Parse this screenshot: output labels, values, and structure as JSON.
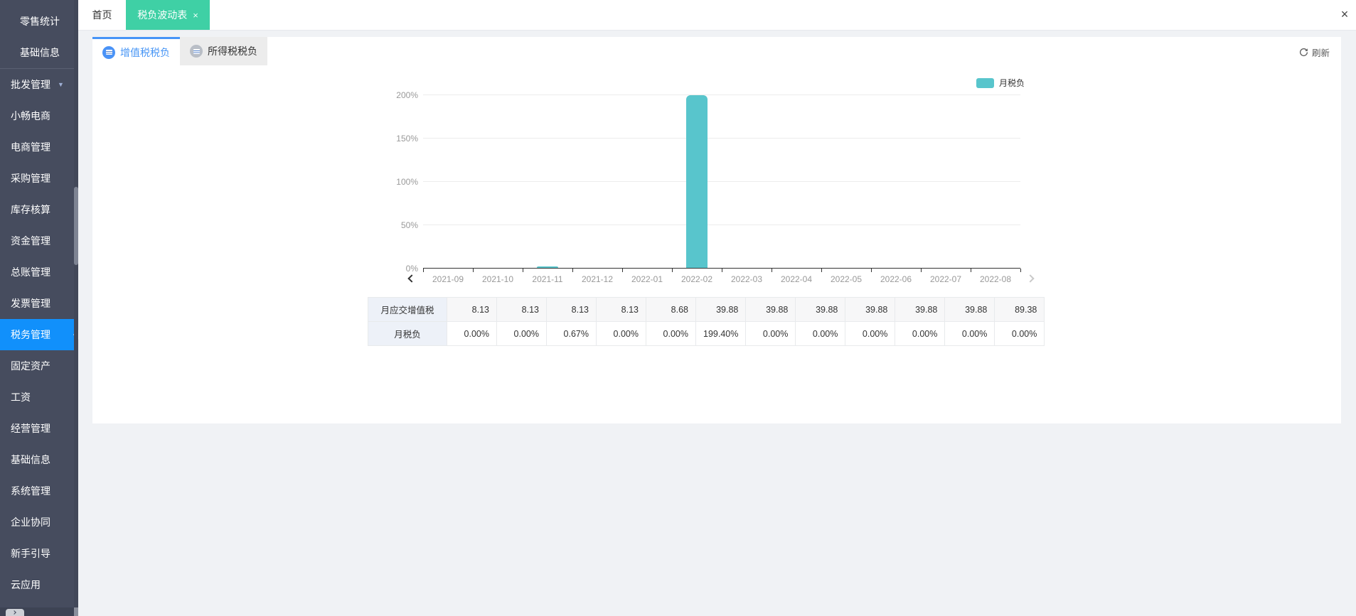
{
  "sidebar": {
    "items": [
      {
        "label": "零售统计",
        "indent": true
      },
      {
        "label": "基础信息",
        "indent": true
      },
      {
        "label": "批发管理",
        "dropdown": true
      },
      {
        "label": "小畅电商"
      },
      {
        "label": "电商管理"
      },
      {
        "label": "采购管理"
      },
      {
        "label": "库存核算"
      },
      {
        "label": "资金管理"
      },
      {
        "label": "总账管理"
      },
      {
        "label": "发票管理"
      },
      {
        "label": "税务管理",
        "active": true
      },
      {
        "label": "固定资产"
      },
      {
        "label": "工资"
      },
      {
        "label": "经营管理"
      },
      {
        "label": "基础信息"
      },
      {
        "label": "系统管理"
      },
      {
        "label": "企业协同"
      },
      {
        "label": "新手引导"
      },
      {
        "label": "云应用"
      }
    ]
  },
  "tabbar": {
    "home_label": "首页",
    "active_label": "税负波动表",
    "tab_close": "×",
    "window_close": "×"
  },
  "content": {
    "tabs": [
      {
        "label": "增值税税负",
        "active": true
      },
      {
        "label": "所得税税负",
        "active": false
      }
    ],
    "refresh_label": "刷新"
  },
  "chart_data": {
    "type": "bar",
    "title": "",
    "legend_label": "月税负",
    "legend_position": "top-right",
    "grid": true,
    "categories": [
      "2021-09",
      "2021-10",
      "2021-11",
      "2021-12",
      "2022-01",
      "2022-02",
      "2022-03",
      "2022-04",
      "2022-05",
      "2022-06",
      "2022-07",
      "2022-08"
    ],
    "series": [
      {
        "name": "月税负",
        "values": [
          0,
          0,
          0.67,
          0,
          0,
          199.4,
          0,
          0,
          0,
          0,
          0,
          0
        ]
      }
    ],
    "ylim": [
      0,
      200
    ],
    "yticks": [
      "0%",
      "50%",
      "100%",
      "150%",
      "200%"
    ],
    "bar_color": "#58c5cc"
  },
  "table": {
    "rows": [
      {
        "header": "月应交增值税",
        "values": [
          "8.13",
          "8.13",
          "8.13",
          "8.13",
          "8.68",
          "39.88",
          "39.88",
          "39.88",
          "39.88",
          "39.88",
          "39.88",
          "89.38"
        ]
      },
      {
        "header": "月税负",
        "values": [
          "0.00%",
          "0.00%",
          "0.67%",
          "0.00%",
          "0.00%",
          "199.40%",
          "0.00%",
          "0.00%",
          "0.00%",
          "0.00%",
          "0.00%",
          "0.00%"
        ]
      }
    ]
  },
  "colors": {
    "sidebar_bg": "#464c5e",
    "active_menu_blue": "#1190fb",
    "active_tab_green": "#3fd0a5",
    "content_tab_blue": "#4694f7",
    "bar_teal": "#58c5cc",
    "page_bg": "#f0f2f5"
  }
}
